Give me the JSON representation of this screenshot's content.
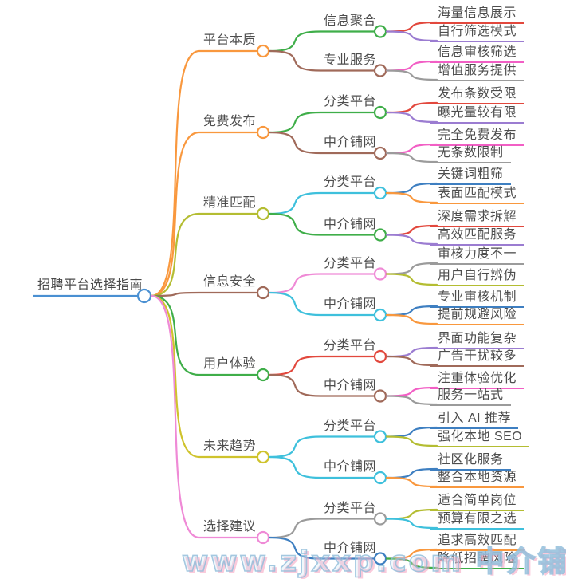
{
  "root": {
    "label": "招聘平台选择指南",
    "color": "#4a90d2"
  },
  "watermark": {
    "text": "www.zjxxp.com 中介铺网"
  },
  "branches": [
    {
      "label": "平台本质",
      "color": "#f9983e",
      "children": [
        {
          "label": "信息聚合",
          "color": "#3fae49",
          "leaves": [
            {
              "label": "海量信息展示",
              "color": "#e2483d"
            },
            {
              "label": "自行筛选模式",
              "color": "#9b7cd1"
            }
          ]
        },
        {
          "label": "专业服务",
          "color": "#a06a5a",
          "leaves": [
            {
              "label": "信息审核筛选",
              "color": "#f25fc5"
            },
            {
              "label": "增值服务提供",
              "color": "#9b9b9b"
            }
          ]
        }
      ]
    },
    {
      "label": "免费发布",
      "color": "#f9983e",
      "children": [
        {
          "label": "分类平台",
          "color": "#3fae49",
          "leaves": [
            {
              "label": "发布条数受限",
              "color": "#e2483d"
            },
            {
              "label": "曝光量较有限",
              "color": "#9b7cd1"
            }
          ]
        },
        {
          "label": "中介铺网",
          "color": "#a06a5a",
          "leaves": [
            {
              "label": "完全免费发布",
              "color": "#f25fc5"
            },
            {
              "label": "无条数限制",
              "color": "#9b9b9b"
            }
          ]
        }
      ]
    },
    {
      "label": "精准匹配",
      "color": "#b4bd32",
      "children": [
        {
          "label": "分类平台",
          "color": "#3ec0dc",
          "leaves": [
            {
              "label": "关键词粗筛",
              "color": "#3e7fc1"
            },
            {
              "label": "表面匹配模式",
              "color": "#f9983e"
            }
          ]
        },
        {
          "label": "中介铺网",
          "color": "#3fae49",
          "leaves": [
            {
              "label": "深度需求拆解",
              "color": "#e2483d"
            },
            {
              "label": "高效匹配服务",
              "color": "#9b7cd1"
            }
          ]
        }
      ]
    },
    {
      "label": "信息安全",
      "color": "#a06a5a",
      "children": [
        {
          "label": "分类平台",
          "color": "#ef8ad6",
          "leaves": [
            {
              "label": "审核力度不一",
              "color": "#9b9b9b"
            },
            {
              "label": "用户自行辨伪",
              "color": "#b4bd32"
            }
          ]
        },
        {
          "label": "中介铺网",
          "color": "#3ec0dc",
          "leaves": [
            {
              "label": "专业审核机制",
              "color": "#3e7fc1"
            },
            {
              "label": "提前规避风险",
              "color": "#f9983e"
            }
          ]
        }
      ]
    },
    {
      "label": "用户体验",
      "color": "#3fae49",
      "children": [
        {
          "label": "分类平台",
          "color": "#e2483d",
          "leaves": [
            {
              "label": "界面功能复杂",
              "color": "#9b7cd1"
            },
            {
              "label": "广告干扰较多",
              "color": "#a06a5a"
            }
          ]
        },
        {
          "label": "中介铺网",
          "color": "#a06a5a",
          "leaves": [
            {
              "label": "注重体验优化",
              "color": "#f25fc5"
            },
            {
              "label": "服务一站式",
              "color": "#9b9b9b"
            }
          ]
        }
      ]
    },
    {
      "label": "未来趋势",
      "color": "#cfc32d",
      "children": [
        {
          "label": "分类平台",
          "color": "#3ec0dc",
          "leaves": [
            {
              "label": "引入 AI 推荐",
              "color": "#3e7fc1"
            },
            {
              "label": "强化本地 SEO",
              "color": "#b4bd32"
            }
          ]
        },
        {
          "label": "中介铺网",
          "color": "#3ec0dc",
          "leaves": [
            {
              "label": "社区化服务",
              "color": "#3e7fc1"
            },
            {
              "label": "整合本地资源",
              "color": "#f9983e"
            }
          ]
        }
      ]
    },
    {
      "label": "选择建议",
      "color": "#ef8ad6",
      "children": [
        {
          "label": "分类平台",
          "color": "#9b9b9b",
          "leaves": [
            {
              "label": "适合简单岗位",
              "color": "#b4bd32"
            },
            {
              "label": "预算有限之选",
              "color": "#3ec0dc"
            }
          ]
        },
        {
          "label": "中介铺网",
          "color": "#3e7fc1",
          "leaves": [
            {
              "label": "追求高效匹配",
              "color": "#f9983e"
            },
            {
              "label": "降低招聘风险",
              "color": "#3fae49"
            }
          ]
        }
      ]
    }
  ]
}
